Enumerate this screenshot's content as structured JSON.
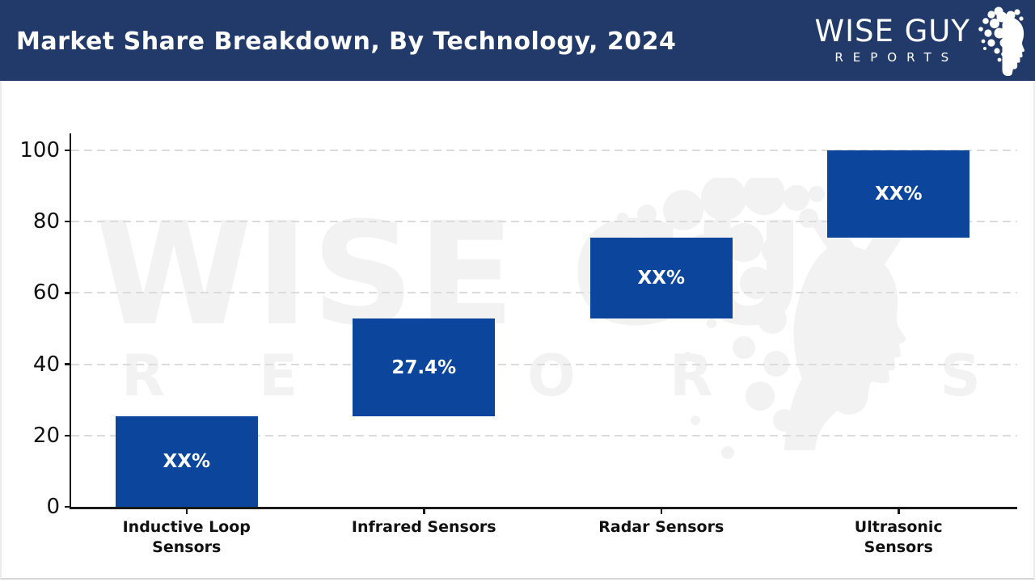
{
  "header": {
    "logo": {
      "line1": "WISE GUY",
      "line2": "REPORTS"
    }
  },
  "watermark": {
    "line1": "WISE GUY",
    "line2": "R E P O R T S"
  },
  "chart_data": {
    "type": "bar",
    "variant": "floating-waterfall",
    "title": "Market Share Breakdown, By Technology, 2024",
    "categories": [
      "Inductive Loop Sensors",
      "Infrared Sensors",
      "Radar Sensors",
      "Ultrasonic Sensors"
    ],
    "bars": [
      {
        "category": "Inductive Loop Sensors",
        "start": 0,
        "end": 25.4,
        "label": "XX%"
      },
      {
        "category": "Infrared Sensors",
        "start": 25.4,
        "end": 52.8,
        "label": "27.4%"
      },
      {
        "category": "Radar Sensors",
        "start": 52.8,
        "end": 75.6,
        "label": "XX%"
      },
      {
        "category": "Ultrasonic Sensors",
        "start": 75.6,
        "end": 100,
        "label": "XX%"
      }
    ],
    "xlabel": "",
    "ylabel": "",
    "yticks": [
      0,
      20,
      40,
      60,
      80,
      100
    ],
    "ylim": [
      0,
      105
    ],
    "legend": "none",
    "grid": {
      "horizontal": true,
      "style": "dashed",
      "color": "#DCDCDC"
    },
    "colors": {
      "bar": "#0B459C",
      "bar_label": "#FFFFFF",
      "header_bg": "#223A69",
      "header_text": "#FFFFFF",
      "watermark": "#F2F2F2",
      "axis": "#1A1A1A"
    }
  }
}
